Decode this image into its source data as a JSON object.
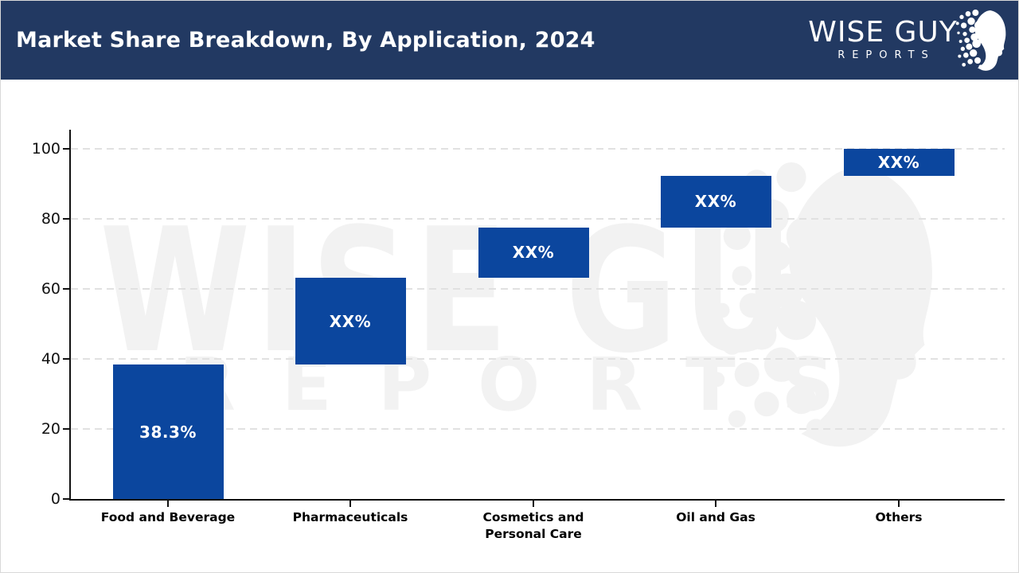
{
  "header": {
    "title": "Market Share Breakdown, By Application, 2024",
    "logo": {
      "line1": "WISE GUY",
      "line2": "REPORTS"
    }
  },
  "watermark": {
    "line1": "WISE GUY",
    "line2": "REPORTS"
  },
  "colors": {
    "header_bg": "#223962",
    "bar": "#0b469e",
    "bar_label": "#ffffff",
    "grid": "#e1e1e1",
    "axis": "#111111",
    "watermark": "#f2f2f2"
  },
  "chart_data": {
    "type": "waterfall-bar",
    "title": "Market Share Breakdown, By Application, 2024",
    "categories": [
      "Food and Beverage",
      "Pharmaceuticals",
      "Cosmetics and\nPersonal Care",
      "Oil and Gas",
      "Others"
    ],
    "segments": [
      {
        "category": "Food and Beverage",
        "start": 0,
        "end": 38.3,
        "label": "38.3%"
      },
      {
        "category": "Pharmaceuticals",
        "start": 38.3,
        "end": 63.2,
        "label": "XX%"
      },
      {
        "category": "Cosmetics and Personal Care",
        "start": 63.2,
        "end": 77.5,
        "label": "XX%"
      },
      {
        "category": "Oil and Gas",
        "start": 77.5,
        "end": 92.3,
        "label": "XX%"
      },
      {
        "category": "Others",
        "start": 92.3,
        "end": 100,
        "label": "XX%"
      }
    ],
    "xlabel": "",
    "ylabel": "",
    "yticks": [
      0,
      20,
      40,
      60,
      80,
      100
    ],
    "ylim": [
      0,
      105.5
    ],
    "grid": "horizontal-dashed",
    "legend": "none"
  }
}
